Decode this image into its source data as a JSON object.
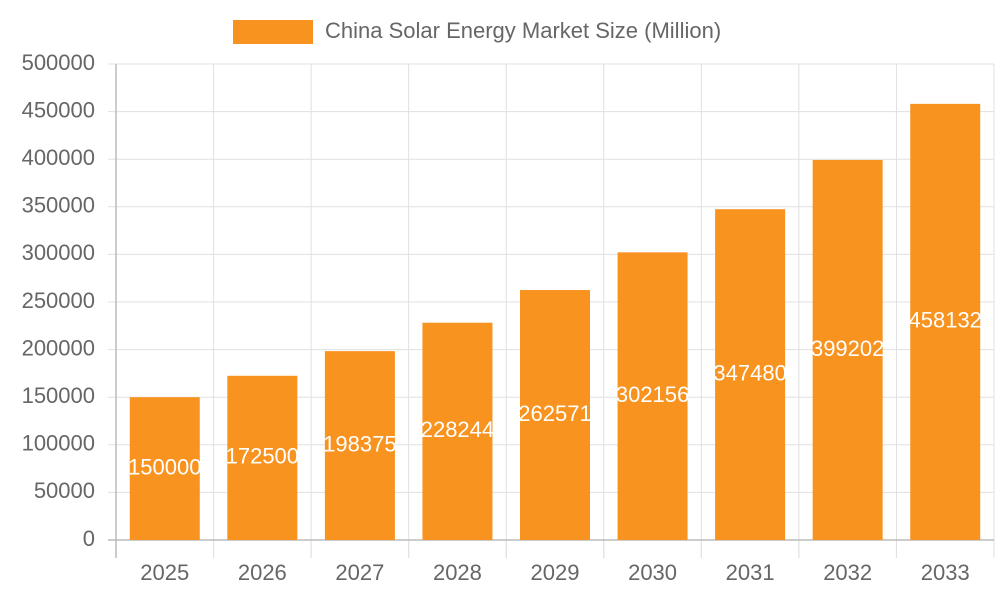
{
  "chart_data": {
    "type": "bar",
    "categories": [
      "2025",
      "2026",
      "2027",
      "2028",
      "2029",
      "2030",
      "2031",
      "2032",
      "2033"
    ],
    "series": [
      {
        "name": "China Solar Energy Market Size (Million)",
        "color": "#f7931e",
        "values": [
          150000,
          172500,
          198375,
          228244,
          262571,
          302156,
          347480,
          399202,
          458132
        ]
      }
    ],
    "ylim": [
      0,
      500000
    ],
    "yticks": [
      0,
      50000,
      100000,
      150000,
      200000,
      250000,
      300000,
      350000,
      400000,
      450000,
      500000
    ],
    "grid": true
  }
}
